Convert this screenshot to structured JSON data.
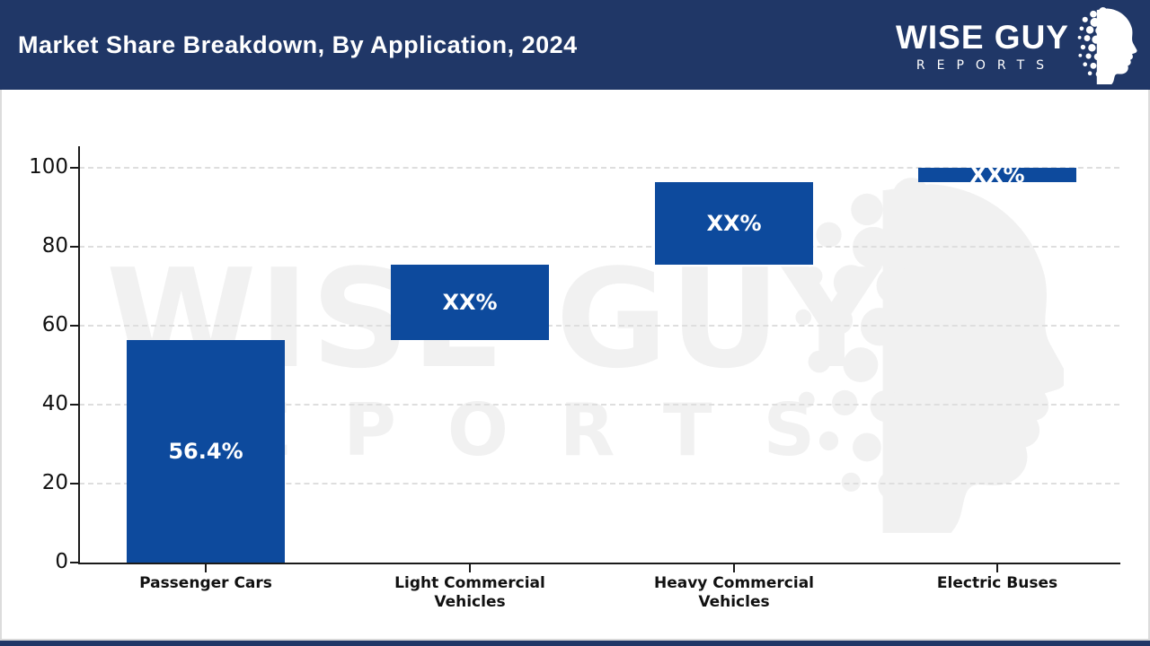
{
  "header": {
    "title": "Market Share Breakdown, By Application, 2024",
    "brand": {
      "line1": "WISE GUY",
      "line2": "REPORTS"
    }
  },
  "watermark": {
    "line1": "WISE GUY",
    "line2": "REPORTS"
  },
  "chart_data": {
    "type": "bar",
    "subtype": "waterfall",
    "title": "Market Share Breakdown, By Application, 2024",
    "categories": [
      [
        "Passenger Cars"
      ],
      [
        "Light Commercial",
        "Vehicles"
      ],
      [
        "Heavy Commercial",
        "Vehicles"
      ],
      [
        "Electric Buses"
      ]
    ],
    "bars": [
      {
        "category": "Passenger Cars",
        "from": 0,
        "to": 56.4,
        "label": "56.4%"
      },
      {
        "category": "Light Commercial Vehicles",
        "from": 56.4,
        "to": 75.5,
        "label": "XX%"
      },
      {
        "category": "Heavy Commercial Vehicles",
        "from": 75.5,
        "to": 96.4,
        "label": "XX%"
      },
      {
        "category": "Electric Buses",
        "from": 96.4,
        "to": 100,
        "label": "XX%"
      }
    ],
    "ylim": [
      0,
      100
    ],
    "yticks": [
      0,
      20,
      40,
      60,
      80,
      100
    ],
    "xlabel": "",
    "ylabel": "",
    "grid": "horizontal-dashed",
    "legend": "none",
    "bar_color": "#0d4a9d",
    "label_color": "#ffffff"
  },
  "colors": {
    "header_bg": "#203767",
    "bar_blue": "#0d4a9d",
    "watermark_gray": "#f1f1f1",
    "axis_black": "#1a1a1a",
    "gridline_gray": "#dedede"
  }
}
